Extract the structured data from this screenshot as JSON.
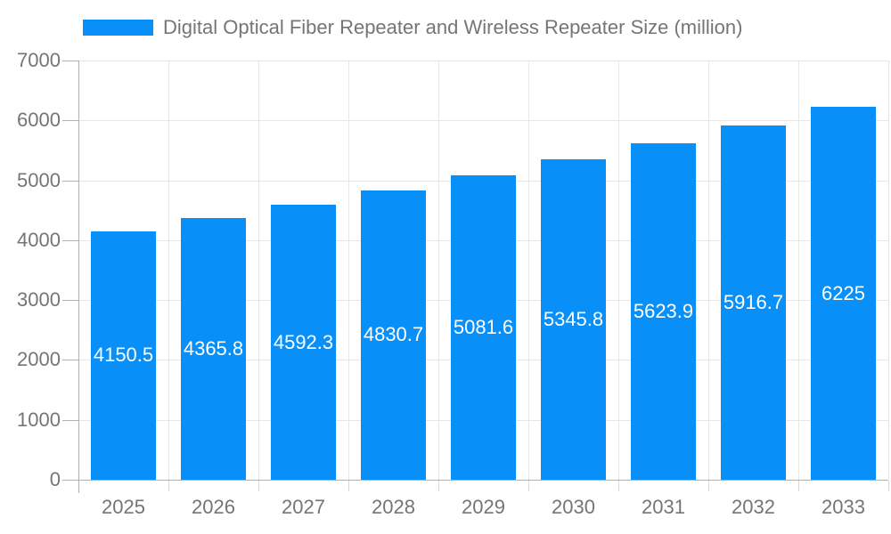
{
  "chart_data": {
    "type": "bar",
    "title": "Digital Optical Fiber Repeater and Wireless Repeater Size (million)",
    "legend_position": "top-left",
    "categories": [
      "2025",
      "2026",
      "2027",
      "2028",
      "2029",
      "2030",
      "2031",
      "2032",
      "2033"
    ],
    "series": [
      {
        "name": "Digital Optical Fiber Repeater and Wireless Repeater Size (million)",
        "values": [
          4150.5,
          4365.8,
          4592.3,
          4830.7,
          5081.6,
          5345.8,
          5623.9,
          5916.7,
          6225
        ],
        "data_labels": [
          "4150.5",
          "4365.8",
          "4592.3",
          "4830.7",
          "5081.6",
          "5345.8",
          "5623.9",
          "5916.7",
          "6225"
        ]
      }
    ],
    "xlabel": "",
    "ylabel": "",
    "ylim": [
      0,
      7000
    ],
    "ytick_step": 1000,
    "ytick_labels": [
      "0",
      "1000",
      "2000",
      "3000",
      "4000",
      "5000",
      "6000",
      "7000"
    ],
    "grid": true
  },
  "colors": {
    "bar": "#0890f8",
    "grid": "#e6e6e6",
    "axis": "#b0b0b0",
    "category_tick": "#d6d6d6",
    "text": "#757575",
    "value_label": "#ffffff",
    "background": "#ffffff"
  }
}
